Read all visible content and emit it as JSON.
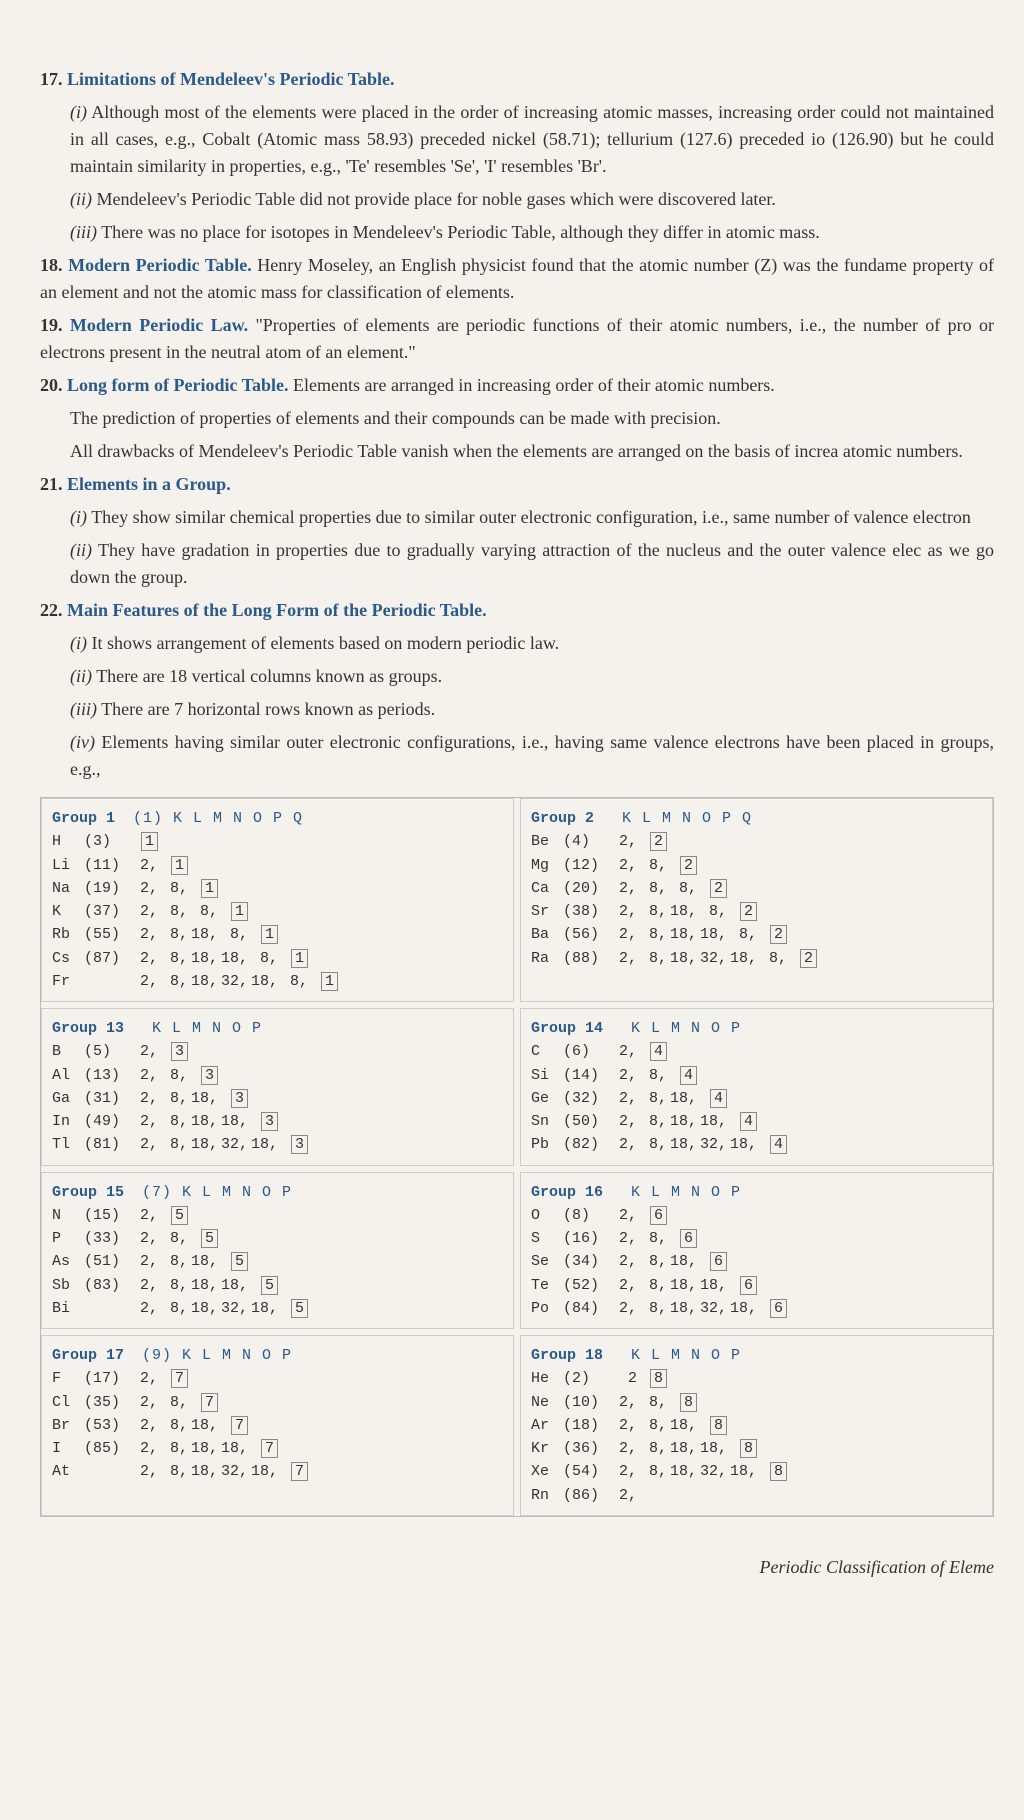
{
  "s17": {
    "num": "17.",
    "title": "Limitations of Mendeleev's Periodic Table.",
    "i": "(i)",
    "i_text": "Although most of the elements were placed in the order of increasing atomic masses, increasing order could not maintained in all cases, e.g., Cobalt (Atomic mass 58.93) preceded nickel (58.71); tellurium (127.6) preceded io (126.90) but he could maintain similarity in properties, e.g., 'Te' resembles 'Se', 'I' resembles 'Br'.",
    "ii": "(ii)",
    "ii_text": "Mendeleev's Periodic Table did not provide place for noble gases which were discovered later.",
    "iii": "(iii)",
    "iii_text": "There was no place for isotopes in Mendeleev's Periodic Table, although they differ in atomic mass."
  },
  "s18": {
    "num": "18.",
    "title": "Modern Periodic Table.",
    "text": "Henry Moseley, an English physicist found that the atomic number (Z) was the fundame property of an element and not the atomic mass for classification of elements."
  },
  "s19": {
    "num": "19.",
    "title": "Modern Periodic Law.",
    "text": "\"Properties of elements are periodic functions of their atomic numbers, i.e., the number of pro or electrons present in the neutral atom of an element.\""
  },
  "s20": {
    "num": "20.",
    "title": "Long form of Periodic Table.",
    "text1": "Elements are arranged in increasing order of their atomic numbers.",
    "text2": "The prediction of properties of elements and their compounds can be made with precision.",
    "text3": "All drawbacks of Mendeleev's Periodic Table vanish when the elements are arranged on the basis of increa atomic numbers."
  },
  "s21": {
    "num": "21.",
    "title": "Elements in a Group.",
    "i": "(i)",
    "i_text": "They show similar chemical properties due to similar outer electronic configuration, i.e., same number of valence electron",
    "ii": "(ii)",
    "ii_text": "They have gradation in properties due to gradually varying attraction of the nucleus and the outer valence elec as we go down the group."
  },
  "s22": {
    "num": "22.",
    "title": "Main Features of the Long Form of the Periodic Table.",
    "i": "(i)",
    "i_text": "It shows arrangement of elements based on modern periodic law.",
    "ii": "(ii)",
    "ii_text": "There are 18 vertical columns known as groups.",
    "iii": "(iii)",
    "iii_text": "There are 7 horizontal rows known as periods.",
    "iv": "(iv)",
    "iv_text": "Elements having similar outer electronic configurations, i.e., having same valence electrons have been placed in groups, e.g.,"
  },
  "groups": [
    {
      "title": "Group 1",
      "hdr": "(1)   K   L   M   N   O   P   Q",
      "rows": [
        {
          "el": "H",
          "an": "(3)",
          "sh": [
            "1"
          ],
          "last": true
        },
        {
          "el": "Li",
          "an": "(11)",
          "sh": [
            "2,",
            "1"
          ],
          "last": true
        },
        {
          "el": "Na",
          "an": "(19)",
          "sh": [
            "2,",
            "8,",
            "1"
          ],
          "last": true
        },
        {
          "el": "K",
          "an": "(37)",
          "sh": [
            "2,",
            "8,",
            "8,",
            "1"
          ],
          "last": true
        },
        {
          "el": "Rb",
          "an": "(55)",
          "sh": [
            "2,",
            "8,",
            "18,",
            "8,",
            "1"
          ],
          "last": true
        },
        {
          "el": "Cs",
          "an": "(87)",
          "sh": [
            "2,",
            "8,",
            "18,",
            "18,",
            "8,",
            "1"
          ],
          "last": true
        },
        {
          "el": "Fr",
          "an": "",
          "sh": [
            "2,",
            "8,",
            "18,",
            "32,",
            "18,",
            "8,",
            "1"
          ],
          "last": true
        }
      ]
    },
    {
      "title": "Group 2",
      "hdr": "      K   L   M   N   O   P   Q",
      "rows": [
        {
          "el": "Be",
          "an": "(4)",
          "sh": [
            "2,",
            "2"
          ],
          "last": true
        },
        {
          "el": "Mg",
          "an": "(12)",
          "sh": [
            "2,",
            "8,",
            "2"
          ],
          "last": true
        },
        {
          "el": "Ca",
          "an": "(20)",
          "sh": [
            "2,",
            "8,",
            "8,",
            "2"
          ],
          "last": true
        },
        {
          "el": "Sr",
          "an": "(38)",
          "sh": [
            "2,",
            "8,",
            "18,",
            "8,",
            "2"
          ],
          "last": true
        },
        {
          "el": "Ba",
          "an": "(56)",
          "sh": [
            "2,",
            "8,",
            "18,",
            "18,",
            "8,",
            "2"
          ],
          "last": true
        },
        {
          "el": "Ra",
          "an": "(88)",
          "sh": [
            "2,",
            "8,",
            "18,",
            "32,",
            "18,",
            "8,",
            "2"
          ],
          "last": true
        }
      ]
    },
    {
      "title": "Group 13",
      "hdr": "      K   L   M   N   O   P",
      "rows": [
        {
          "el": "B",
          "an": "(5)",
          "sh": [
            "2,",
            "3"
          ],
          "last": true
        },
        {
          "el": "Al",
          "an": "(13)",
          "sh": [
            "2,",
            "8,",
            "3"
          ],
          "last": true
        },
        {
          "el": "Ga",
          "an": "(31)",
          "sh": [
            "2,",
            "8,",
            "18,",
            "3"
          ],
          "last": true
        },
        {
          "el": "In",
          "an": "(49)",
          "sh": [
            "2,",
            "8,",
            "18,",
            "18,",
            "3"
          ],
          "last": true
        },
        {
          "el": "Tl",
          "an": "(81)",
          "sh": [
            "2,",
            "8,",
            "18,",
            "32,",
            "18,",
            "3"
          ],
          "last": true
        }
      ]
    },
    {
      "title": "Group 14",
      "hdr": "      K   L   M   N   O   P",
      "rows": [
        {
          "el": "C",
          "an": "(6)",
          "sh": [
            "2,",
            "4"
          ],
          "last": true
        },
        {
          "el": "Si",
          "an": "(14)",
          "sh": [
            "2,",
            "8,",
            "4"
          ],
          "last": true
        },
        {
          "el": "Ge",
          "an": "(32)",
          "sh": [
            "2,",
            "8,",
            "18,",
            "4"
          ],
          "last": true
        },
        {
          "el": "Sn",
          "an": "(50)",
          "sh": [
            "2,",
            "8,",
            "18,",
            "18,",
            "4"
          ],
          "last": true
        },
        {
          "el": "Pb",
          "an": "(82)",
          "sh": [
            "2,",
            "8,",
            "18,",
            "32,",
            "18,",
            "4"
          ],
          "last": true
        }
      ]
    },
    {
      "title": "Group 15",
      "hdr": "(7)   K   L   M   N   O   P",
      "rows": [
        {
          "el": "N",
          "an": "(15)",
          "sh": [
            "2,",
            "5"
          ],
          "last": true
        },
        {
          "el": "P",
          "an": "(33)",
          "sh": [
            "2,",
            "8,",
            "5"
          ],
          "last": true
        },
        {
          "el": "As",
          "an": "(51)",
          "sh": [
            "2,",
            "8,",
            "18,",
            "5"
          ],
          "last": true
        },
        {
          "el": "Sb",
          "an": "(83)",
          "sh": [
            "2,",
            "8,",
            "18,",
            "18,",
            "5"
          ],
          "last": true
        },
        {
          "el": "Bi",
          "an": "",
          "sh": [
            "2,",
            "8,",
            "18,",
            "32,",
            "18,",
            "5"
          ],
          "last": true
        }
      ]
    },
    {
      "title": "Group 16",
      "hdr": "      K   L   M   N   O   P",
      "rows": [
        {
          "el": "O",
          "an": "(8)",
          "sh": [
            "2,",
            "6"
          ],
          "last": true
        },
        {
          "el": "S",
          "an": "(16)",
          "sh": [
            "2,",
            "8,",
            "6"
          ],
          "last": true
        },
        {
          "el": "Se",
          "an": "(34)",
          "sh": [
            "2,",
            "8,",
            "18,",
            "6"
          ],
          "last": true
        },
        {
          "el": "Te",
          "an": "(52)",
          "sh": [
            "2,",
            "8,",
            "18,",
            "18,",
            "6"
          ],
          "last": true
        },
        {
          "el": "Po",
          "an": "(84)",
          "sh": [
            "2,",
            "8,",
            "18,",
            "32,",
            "18,",
            "6"
          ],
          "last": true
        }
      ]
    },
    {
      "title": "Group 17",
      "hdr": "(9)   K   L   M   N   O   P",
      "rows": [
        {
          "el": "F",
          "an": "(17)",
          "sh": [
            "2,",
            "7"
          ],
          "last": true
        },
        {
          "el": "Cl",
          "an": "(35)",
          "sh": [
            "2,",
            "8,",
            "7"
          ],
          "last": true
        },
        {
          "el": "Br",
          "an": "(53)",
          "sh": [
            "2,",
            "8,",
            "18,",
            "7"
          ],
          "last": true
        },
        {
          "el": "I",
          "an": "(85)",
          "sh": [
            "2,",
            "8,",
            "18,",
            "18,",
            "7"
          ],
          "last": true
        },
        {
          "el": "At",
          "an": "",
          "sh": [
            "2,",
            "8,",
            "18,",
            "32,",
            "18,",
            "7"
          ],
          "last": true
        }
      ]
    },
    {
      "title": "Group 18",
      "hdr": "      K   L   M   N   O   P",
      "rows": [
        {
          "el": "He",
          "an": "(2)",
          "sh": [
            "2",
            "8"
          ],
          "last": true
        },
        {
          "el": "Ne",
          "an": "(10)",
          "sh": [
            "2,",
            "8,",
            "8"
          ],
          "last": true
        },
        {
          "el": "Ar",
          "an": "(18)",
          "sh": [
            "2,",
            "8,",
            "18,",
            "8"
          ],
          "last": true
        },
        {
          "el": "Kr",
          "an": "(36)",
          "sh": [
            "2,",
            "8,",
            "18,",
            "18,",
            "8"
          ],
          "last": true
        },
        {
          "el": "Xe",
          "an": "(54)",
          "sh": [
            "2,",
            "8,",
            "18,",
            "32,",
            "18,",
            "8"
          ],
          "last": true
        },
        {
          "el": "Rn",
          "an": "(86)",
          "sh": [
            "2,"
          ],
          "last": false
        }
      ]
    }
  ],
  "footer": "Periodic Classification of Eleme"
}
